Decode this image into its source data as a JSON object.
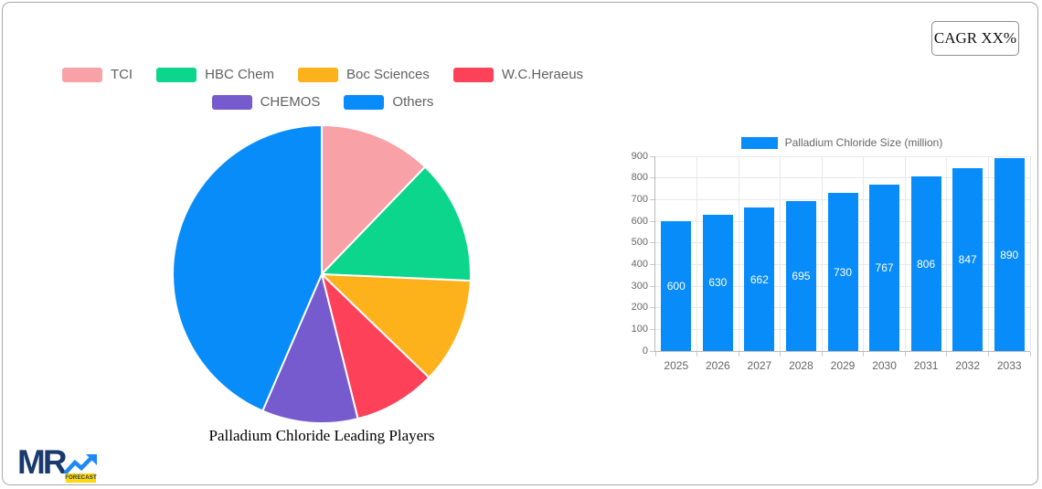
{
  "card": {
    "cagr_button": "CAGR XX%"
  },
  "logo": {
    "brand": "MR",
    "badge": "FORECAST",
    "brand_color": "#1a3a6d",
    "arrow_color": "#1e88f7",
    "badge_color": "#ffd60a"
  },
  "chart_data": [
    {
      "type": "pie",
      "title": "Palladium Chloride Leading Players",
      "labels": [
        "TCI",
        "HBC Chem",
        "Boc Sciences",
        "W.C.Heraeus",
        "CHEMOS",
        "Others"
      ],
      "values_pct": [
        12.2,
        13.5,
        11.5,
        8.9,
        10.4,
        43.5
      ],
      "colors": [
        "#f8a1a7",
        "#0bd68b",
        "#fdb11b",
        "#fd4159",
        "#765bce",
        "#078cfa"
      ],
      "legend_position": "top",
      "legend_row_split": 4,
      "start_angle": "top",
      "direction": "clockwise",
      "slice_border_color": "#ffffff"
    },
    {
      "type": "bar",
      "legend_label": "Palladium Chloride Size (million)",
      "legend_position": "top",
      "categories": [
        "2025",
        "2026",
        "2027",
        "2028",
        "2029",
        "2030",
        "2031",
        "2032",
        "2033"
      ],
      "values": [
        600,
        630,
        662,
        695,
        730,
        767,
        806,
        847,
        890
      ],
      "bar_color": "#078cfa",
      "value_label_color": "#ffffff",
      "ylim": [
        0,
        900
      ],
      "yticks": [
        0,
        100,
        200,
        300,
        400,
        500,
        600,
        700,
        800,
        900
      ],
      "grid": true
    }
  ]
}
